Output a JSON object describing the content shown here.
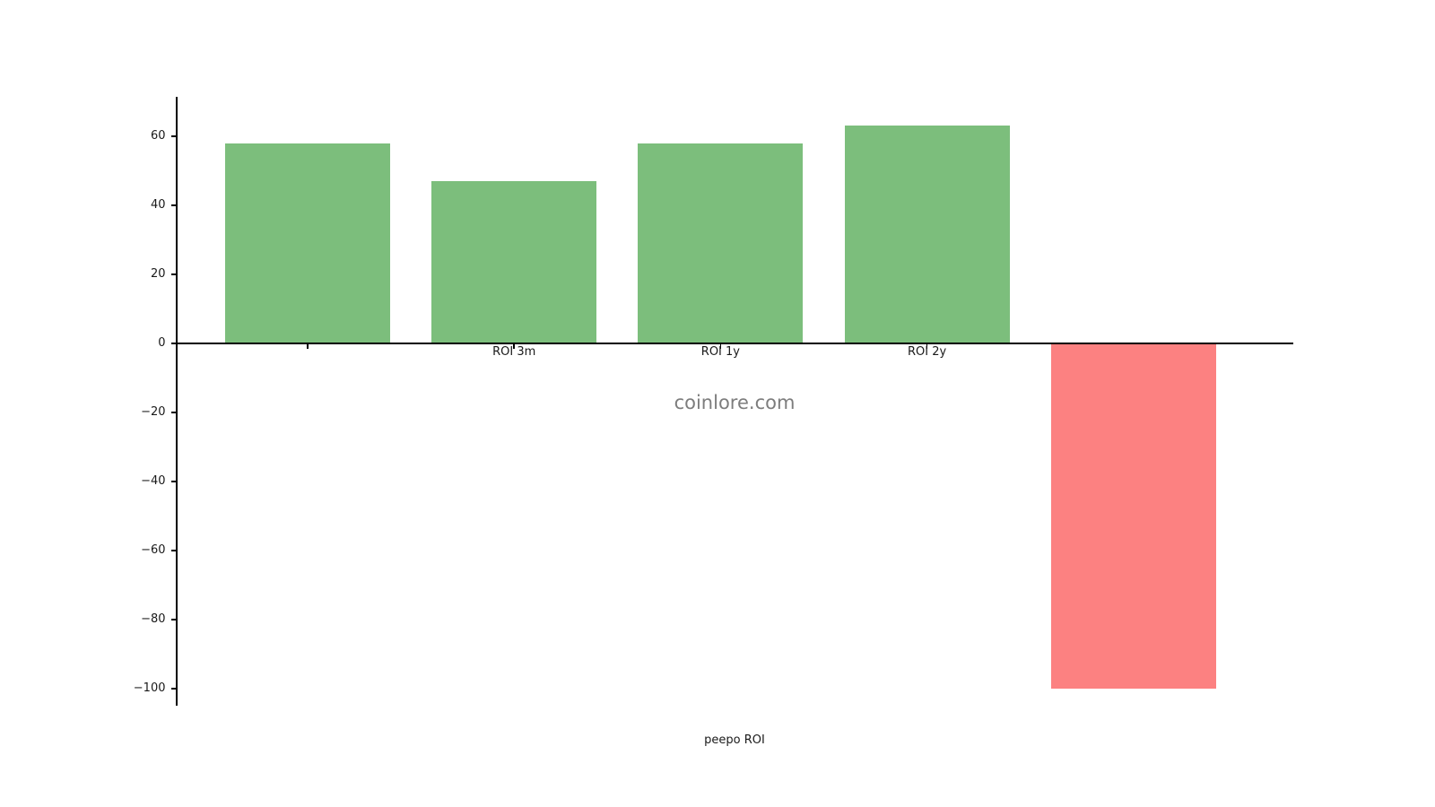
{
  "page": {
    "background": "#ffffff"
  },
  "watermark": {
    "text": "coinlore.com",
    "color": "#7d7d7d"
  },
  "chart_data": {
    "type": "bar",
    "title": "",
    "xlabel": "peepo ROI",
    "ylabel": "",
    "categories": [
      "",
      "ROI 3m",
      "ROI 1y",
      "ROI 2y",
      ""
    ],
    "values": [
      58,
      47,
      58,
      63,
      -100
    ],
    "colors": [
      "#7cbe7c",
      "#7cbe7c",
      "#7cbe7c",
      "#7cbe7c",
      "#fc8181"
    ],
    "positive_color": "#7cbe7c",
    "negative_color": "#fc8181",
    "yticks": [
      60,
      40,
      20,
      0,
      -20,
      -40,
      -60,
      -80,
      -100
    ],
    "ylim": [
      -105,
      71.5
    ],
    "grid": false,
    "legend": "none",
    "axis_color": "#000000",
    "tick_label_color": "#1a1a1a"
  }
}
